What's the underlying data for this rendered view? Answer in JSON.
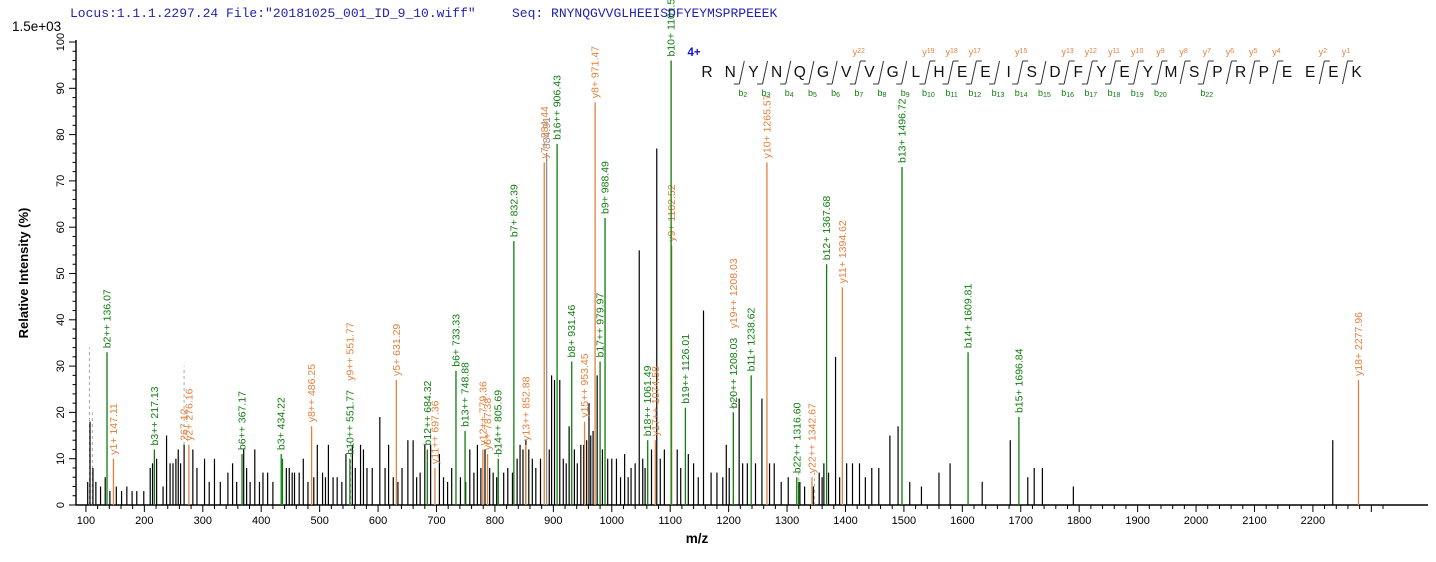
{
  "header": {
    "locus_text": "Locus:1.1.1.2297.24 File:\"20181025_001_ID_9_10.wiff\"",
    "seq_label": "Seq:",
    "sequence": "RNYNQGVVGLHEEISDFYEYMSPRPEEEK"
  },
  "ladder": {
    "charge_label": "4+",
    "sequence": "RNYNQGVVGLHEEISDFYEYMSPRPEEEK",
    "y_marks": [
      [
        "y22",
        7
      ],
      [
        "y19",
        10
      ],
      [
        "y18",
        11
      ],
      [
        "y17",
        12
      ],
      [
        "y15",
        14
      ],
      [
        "y13",
        16
      ],
      [
        "y12",
        17
      ],
      [
        "y11",
        18
      ],
      [
        "y10",
        19
      ],
      [
        "y9",
        20
      ],
      [
        "y8",
        21
      ],
      [
        "y7",
        22
      ],
      [
        "y6",
        23
      ],
      [
        "y5",
        24
      ],
      [
        "y4",
        25
      ],
      [
        "y2",
        27
      ],
      [
        "y1",
        28
      ]
    ],
    "b_marks": [
      [
        "b2",
        2
      ],
      [
        "b3",
        3
      ],
      [
        "b4",
        4
      ],
      [
        "b5",
        5
      ],
      [
        "b6",
        6
      ],
      [
        "b7",
        7
      ],
      [
        "b8",
        8
      ],
      [
        "b9",
        9
      ],
      [
        "b10",
        10
      ],
      [
        "b11",
        11
      ],
      [
        "b12",
        12
      ],
      [
        "b13",
        13
      ],
      [
        "b14",
        14
      ],
      [
        "b15",
        15
      ],
      [
        "b16",
        16
      ],
      [
        "b17",
        17
      ],
      [
        "b18",
        18
      ],
      [
        "b19",
        19
      ],
      [
        "b20",
        20
      ],
      [
        "b22",
        22
      ]
    ]
  },
  "colors": {
    "b_ion": "#0f7d0f",
    "y_ion": "#e5813d",
    "unassigned": "#000000",
    "gray_peak": "#909090",
    "header_blue": "#1f1fb4",
    "charge_blue": "#1515cc",
    "dashed_guide": "#a8a8a8"
  },
  "chart_data": {
    "type": "bar",
    "subtype": "ms2-stick-spectrum",
    "xlabel": "m/z",
    "ylabel": "Relative  Intensity  (%)",
    "y_max_counts_label": "1.5e+03",
    "xlim": [
      83,
      2397
    ],
    "ylim": [
      0,
      100
    ],
    "x_major_ticks": [
      100,
      200,
      300,
      400,
      500,
      600,
      700,
      800,
      900,
      1000,
      1100,
      1200,
      1300,
      1400,
      1500,
      1600,
      1700,
      1800,
      1900,
      2000,
      2100,
      2200
    ],
    "y_major_ticks": [
      0,
      10,
      20,
      30,
      40,
      50,
      60,
      70,
      80,
      90,
      100
    ],
    "x_minor_step": 20,
    "y_minor_step": 2,
    "series": [
      {
        "name": "b-ions",
        "color": "#0f7d0f",
        "points": [
          {
            "mz": 136.07,
            "pct": 33,
            "label": "b2++ 136.07"
          },
          {
            "mz": 217.13,
            "pct": 12,
            "label": "b3++ 217.13"
          },
          {
            "mz": 367.17,
            "pct": 11,
            "label": "b6++ 367.17"
          },
          {
            "mz": 434.22,
            "pct": 11,
            "label": "b3+ 434.22"
          },
          {
            "mz": 436.4,
            "pct": 10,
            "label": ""
          },
          {
            "mz": 551.77,
            "pct": 10,
            "label": "b10++ 551.77"
          },
          {
            "mz": 684.32,
            "pct": 12,
            "label": "b12++ 684.32"
          },
          {
            "mz": 733.33,
            "pct": 29,
            "label": "b6+ 733.33"
          },
          {
            "mz": 748.88,
            "pct": 16,
            "label": "b13++ 748.88"
          },
          {
            "mz": 805.69,
            "pct": 10,
            "label": "b14++ 805.69"
          },
          {
            "mz": 832.39,
            "pct": 57,
            "label": "b7+ 832.39"
          },
          {
            "mz": 906.43,
            "pct": 78,
            "label": "b16++ 906.43"
          },
          {
            "mz": 931.46,
            "pct": 31,
            "label": "b8+ 931.46"
          },
          {
            "mz": 979.97,
            "pct": 31,
            "label": "b17++ 979.97"
          },
          {
            "mz": 988.49,
            "pct": 62,
            "label": "b9+ 988.49"
          },
          {
            "mz": 1061.49,
            "pct": 14,
            "label": "b18++ 1061.49"
          },
          {
            "mz": 1101.57,
            "pct": 96,
            "label": "b10+ 1101.57"
          },
          {
            "mz": 1126.01,
            "pct": 21,
            "label": "b19++ 1126.01"
          },
          {
            "mz": 1208.03,
            "pct": 20,
            "label": "b20++ 1208.03"
          },
          {
            "mz": 1238.62,
            "pct": 28,
            "label": "b11+ 1238.62"
          },
          {
            "mz": 1316.6,
            "pct": 6,
            "label": "b22++ 1316.60"
          },
          {
            "mz": 1319.8,
            "pct": 5,
            "label": ""
          },
          {
            "mz": 1367.68,
            "pct": 52,
            "label": "b12+ 1367.68"
          },
          {
            "mz": 1496.72,
            "pct": 73,
            "label": "b13+ 1496.72"
          },
          {
            "mz": 1609.81,
            "pct": 33,
            "label": "b14+ 1609.81"
          },
          {
            "mz": 1696.84,
            "pct": 19,
            "label": "b15+ 1696.84"
          }
        ]
      },
      {
        "name": "y-ions",
        "color": "#e5813d",
        "points": [
          {
            "mz": 147.11,
            "pct": 10,
            "label": "y1+ 147.11"
          },
          {
            "mz": 267.5,
            "pct": 13,
            "label": "267.12",
            "line": false
          },
          {
            "mz": 276.16,
            "pct": 13,
            "label": "y2+ 276.16"
          },
          {
            "mz": 486.25,
            "pct": 17,
            "label": "y8++ 486.25"
          },
          {
            "mz": 551.77,
            "pct": 10,
            "label": "y9++ 551.77",
            "line": false,
            "label_offset": 74
          },
          {
            "mz": 631.29,
            "pct": 27,
            "label": "y5+ 631.29"
          },
          {
            "mz": 697.36,
            "pct": 8,
            "label": "y11++ 697.36"
          },
          {
            "mz": 779.36,
            "pct": 12,
            "label": "y12++ 779.36"
          },
          {
            "mz": 787.38,
            "pct": 11,
            "label": "y6+ 787.38"
          },
          {
            "mz": 852.88,
            "pct": 13,
            "label": "y13++ 852.88"
          },
          {
            "mz": 884.44,
            "pct": 74,
            "label": "y7+ 884.44"
          },
          {
            "mz": 953.45,
            "pct": 18,
            "label": "y15++ 953.45"
          },
          {
            "mz": 971.47,
            "pct": 87,
            "label": "y8+ 971.47"
          },
          {
            "mz": 1074.58,
            "pct": 14,
            "label": "y17++ 1074.58"
          },
          {
            "mz": 1102.52,
            "pct": 56,
            "label": "y9+ 1102.52"
          },
          {
            "mz": 1208.03,
            "pct": 20,
            "label": "y19++ 1208.03",
            "line": false,
            "label_offset": 80
          },
          {
            "mz": 1265.57,
            "pct": 74,
            "label": "y10+ 1265.57"
          },
          {
            "mz": 1342.67,
            "pct": 6,
            "label": "y22++ 1342.67"
          },
          {
            "mz": 1394.62,
            "pct": 47,
            "label": "y11+ 1394.62"
          },
          {
            "mz": 2277.96,
            "pct": 27,
            "label": "y18+ 2277.96"
          }
        ]
      },
      {
        "name": "gray",
        "color": "#909090",
        "points": [
          {
            "mz": 888.5,
            "pct": 76,
            "label": "884.91"
          }
        ]
      },
      {
        "name": "unassigned",
        "color": "#000000",
        "points": [
          [
            103,
            5
          ],
          [
            107,
            18
          ],
          [
            112,
            8
          ],
          [
            117,
            5
          ],
          [
            125,
            4
          ],
          [
            133,
            6
          ],
          [
            141,
            3
          ],
          [
            152,
            4
          ],
          [
            161,
            3
          ],
          [
            170,
            4
          ],
          [
            179,
            3
          ],
          [
            187,
            3
          ],
          [
            199,
            3
          ],
          [
            210,
            8
          ],
          [
            214,
            9
          ],
          [
            221,
            10
          ],
          [
            232,
            4
          ],
          [
            238,
            15
          ],
          [
            244,
            9
          ],
          [
            249,
            9
          ],
          [
            254,
            10
          ],
          [
            258,
            12
          ],
          [
            262,
            9
          ],
          [
            268,
            13
          ],
          [
            283,
            12
          ],
          [
            290,
            8
          ],
          [
            303,
            10
          ],
          [
            311,
            5
          ],
          [
            320,
            10
          ],
          [
            330,
            5
          ],
          [
            343,
            7
          ],
          [
            351,
            9
          ],
          [
            358,
            5
          ],
          [
            370,
            12
          ],
          [
            375,
            8
          ],
          [
            381,
            5
          ],
          [
            389,
            12
          ],
          [
            397,
            5
          ],
          [
            403,
            7
          ],
          [
            411,
            7
          ],
          [
            420,
            5
          ],
          [
            443,
            8
          ],
          [
            448,
            8
          ],
          [
            453,
            7
          ],
          [
            457,
            7
          ],
          [
            465,
            7
          ],
          [
            472,
            10
          ],
          [
            480,
            5
          ],
          [
            490,
            6
          ],
          [
            496,
            13
          ],
          [
            505,
            7
          ],
          [
            510,
            6
          ],
          [
            515,
            13
          ],
          [
            523,
            6
          ],
          [
            530,
            6
          ],
          [
            538,
            5
          ],
          [
            545,
            11
          ],
          [
            556,
            13
          ],
          [
            561,
            8
          ],
          [
            570,
            13
          ],
          [
            575,
            12
          ],
          [
            581,
            8
          ],
          [
            590,
            8
          ],
          [
            603,
            19
          ],
          [
            612,
            8
          ],
          [
            618,
            13
          ],
          [
            626,
            6
          ],
          [
            634,
            5
          ],
          [
            641,
            8
          ],
          [
            651,
            14
          ],
          [
            660,
            14
          ],
          [
            666,
            6
          ],
          [
            672,
            7
          ],
          [
            680,
            13
          ],
          [
            690,
            13
          ],
          [
            705,
            11
          ],
          [
            712,
            6
          ],
          [
            719,
            5
          ],
          [
            726,
            8
          ],
          [
            741,
            6
          ],
          [
            750,
            5
          ],
          [
            757,
            12
          ],
          [
            764,
            7
          ],
          [
            770,
            13
          ],
          [
            776,
            8
          ],
          [
            783,
            12
          ],
          [
            791,
            8
          ],
          [
            797,
            7
          ],
          [
            803,
            6
          ],
          [
            815,
            7
          ],
          [
            822,
            8
          ],
          [
            830,
            7
          ],
          [
            838,
            10
          ],
          [
            843,
            13
          ],
          [
            848,
            12
          ],
          [
            853,
            14
          ],
          [
            858,
            12
          ],
          [
            864,
            10
          ],
          [
            870,
            8
          ],
          [
            878,
            10
          ],
          [
            893,
            12
          ],
          [
            897,
            28
          ],
          [
            902,
            27
          ],
          [
            911,
            27
          ],
          [
            917,
            10
          ],
          [
            922,
            9
          ],
          [
            927,
            17
          ],
          [
            936,
            12
          ],
          [
            941,
            9
          ],
          [
            947,
            13
          ],
          [
            952,
            13
          ],
          [
            957,
            14
          ],
          [
            961,
            22
          ],
          [
            964,
            15
          ],
          [
            968,
            16
          ],
          [
            975,
            28
          ],
          [
            984,
            12
          ],
          [
            993,
            10
          ],
          [
            1000,
            10
          ],
          [
            1008,
            10
          ],
          [
            1015,
            6
          ],
          [
            1022,
            11
          ],
          [
            1028,
            6
          ],
          [
            1033,
            8
          ],
          [
            1040,
            9
          ],
          [
            1047,
            55
          ],
          [
            1053,
            10
          ],
          [
            1057,
            8
          ],
          [
            1068,
            12
          ],
          [
            1077,
            77
          ],
          [
            1083,
            10
          ],
          [
            1090,
            12
          ],
          [
            1112,
            12
          ],
          [
            1118,
            8
          ],
          [
            1131,
            11
          ],
          [
            1140,
            9
          ],
          [
            1148,
            6
          ],
          [
            1157,
            42
          ],
          [
            1170,
            7
          ],
          [
            1180,
            7
          ],
          [
            1190,
            6
          ],
          [
            1196,
            13
          ],
          [
            1201,
            8
          ],
          [
            1218,
            23
          ],
          [
            1224,
            9
          ],
          [
            1232,
            9
          ],
          [
            1246,
            9
          ],
          [
            1257,
            23
          ],
          [
            1270,
            9
          ],
          [
            1278,
            9
          ],
          [
            1290,
            5
          ],
          [
            1302,
            6
          ],
          [
            1322,
            5
          ],
          [
            1330,
            4
          ],
          [
            1345,
            4
          ],
          [
            1355,
            7
          ],
          [
            1360,
            6
          ],
          [
            1363,
            9
          ],
          [
            1371,
            7
          ],
          [
            1383,
            32
          ],
          [
            1390,
            6
          ],
          [
            1402,
            9
          ],
          [
            1412,
            9
          ],
          [
            1424,
            9
          ],
          [
            1434,
            6
          ],
          [
            1445,
            8
          ],
          [
            1457,
            8
          ],
          [
            1476,
            15
          ],
          [
            1490,
            17
          ],
          [
            1510,
            5
          ],
          [
            1530,
            4
          ],
          [
            1560,
            7
          ],
          [
            1579,
            9
          ],
          [
            1634,
            5
          ],
          [
            1682,
            14
          ],
          [
            1712,
            6
          ],
          [
            1723,
            8
          ],
          [
            1737,
            8
          ],
          [
            1790,
            4
          ],
          [
            2234,
            14
          ]
        ]
      }
    ],
    "dashed_guides": [
      [
        106,
        34
      ],
      [
        111,
        20
      ],
      [
        268,
        30
      ],
      [
        553,
        14
      ],
      [
        806,
        13
      ],
      [
        1208,
        24
      ],
      [
        1320,
        8
      ],
      [
        1347,
        7
      ]
    ]
  }
}
